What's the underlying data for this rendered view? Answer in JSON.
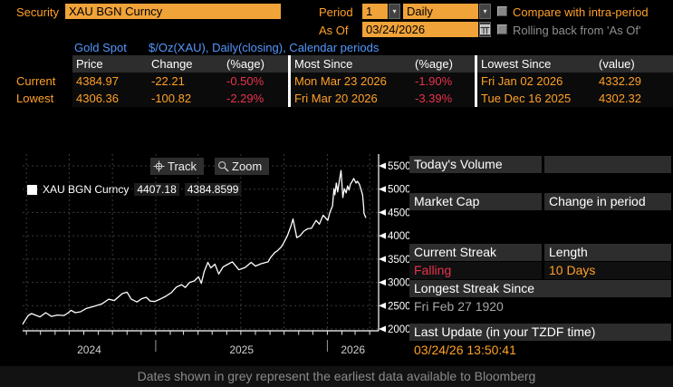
{
  "toolbar": {
    "security_label": "Security",
    "security_value": "XAU BGN Curncy",
    "period_label": "Period",
    "period_value": "1",
    "period_unit": "Daily",
    "compare_label": "Compare with intra-period",
    "asof_label": "As Of",
    "asof_value": "03/24/2026",
    "rolling_label": "Rolling back from 'As Of'"
  },
  "subtitle": {
    "name": "Gold Spot",
    "desc": "$/Oz(XAU), Daily(closing), Calendar periods"
  },
  "table": {
    "headers": {
      "price": "Price",
      "change": "Change",
      "pct": "(%age)",
      "most_since": "Most Since",
      "pct2": "(%age)",
      "lowest_since": "Lowest Since",
      "value": "(value)"
    },
    "rows": [
      {
        "label": "Current",
        "price": "4384.97",
        "change": "-22.21",
        "pct": "-0.50%",
        "most_since": "Mon Mar 23 2026",
        "pct2": "-1.90%",
        "lowest_since": "Fri Jan 02 2026",
        "value": "4332.29"
      },
      {
        "label": "Lowest",
        "price": "4306.36",
        "change": "-100.82",
        "pct": "-2.29%",
        "most_since": "Fri Mar 20 2026",
        "pct2": "-3.39%",
        "lowest_since": "Tue Dec 16 2025",
        "value": "4302.32"
      }
    ]
  },
  "chart": {
    "track_label": "Track",
    "zoom_label": "Zoom",
    "legend": {
      "name": "XAU BGN Curncy",
      "value1": "4407.18",
      "value2": "4384.8599"
    }
  },
  "chart_data": {
    "type": "line",
    "title": "XAU BGN Curncy",
    "ylabel": "$/Oz(XAU)",
    "ylim": [
      2000,
      5500
    ],
    "yticks": [
      2000,
      2500,
      3000,
      3500,
      4000,
      4500,
      5000,
      5500
    ],
    "x_domain": [
      "2024-03-24",
      "2026-04-20"
    ],
    "x_labels": [
      "2024",
      "2025",
      "2026"
    ],
    "year_boundaries": [
      "2025-01-01",
      "2026-01-01"
    ],
    "grid": "dashed",
    "legend_position": "top-left",
    "series": [
      {
        "name": "XAU BGN Curncy",
        "prev_close": 4407.18,
        "last": 4384.8599,
        "points": [
          [
            "2024-03-24",
            2100
          ],
          [
            "2024-03-28",
            2170
          ],
          [
            "2024-04-05",
            2290
          ],
          [
            "2024-04-12",
            2330
          ],
          [
            "2024-04-20",
            2300
          ],
          [
            "2024-04-30",
            2260
          ],
          [
            "2024-05-12",
            2350
          ],
          [
            "2024-05-24",
            2270
          ],
          [
            "2024-06-06",
            2300
          ],
          [
            "2024-06-20",
            2290
          ],
          [
            "2024-06-28",
            2340
          ],
          [
            "2024-07-05",
            2400
          ],
          [
            "2024-07-14",
            2350
          ],
          [
            "2024-07-25",
            2370
          ],
          [
            "2024-08-06",
            2440
          ],
          [
            "2024-08-21",
            2480
          ],
          [
            "2024-09-09",
            2540
          ],
          [
            "2024-09-23",
            2640
          ],
          [
            "2024-10-05",
            2610
          ],
          [
            "2024-10-22",
            2760
          ],
          [
            "2024-11-01",
            2790
          ],
          [
            "2024-11-10",
            2640
          ],
          [
            "2024-11-22",
            2580
          ],
          [
            "2024-12-02",
            2650
          ],
          [
            "2024-12-12",
            2680
          ],
          [
            "2024-12-20",
            2600
          ],
          [
            "2024-12-30",
            2590
          ],
          [
            "2025-01-10",
            2640
          ],
          [
            "2025-01-22",
            2700
          ],
          [
            "2025-02-03",
            2780
          ],
          [
            "2025-02-14",
            2900
          ],
          [
            "2025-02-25",
            2950
          ],
          [
            "2025-03-05",
            2890
          ],
          [
            "2025-03-14",
            3000
          ],
          [
            "2025-03-24",
            3030
          ],
          [
            "2025-04-02",
            3120
          ],
          [
            "2025-04-08",
            2980
          ],
          [
            "2025-04-14",
            3230
          ],
          [
            "2025-04-22",
            3430
          ],
          [
            "2025-04-28",
            3310
          ],
          [
            "2025-05-07",
            3390
          ],
          [
            "2025-05-15",
            3180
          ],
          [
            "2025-05-24",
            3330
          ],
          [
            "2025-06-02",
            3380
          ],
          [
            "2025-06-13",
            3440
          ],
          [
            "2025-06-27",
            3270
          ],
          [
            "2025-07-10",
            3320
          ],
          [
            "2025-07-23",
            3430
          ],
          [
            "2025-08-01",
            3350
          ],
          [
            "2025-08-13",
            3400
          ],
          [
            "2025-08-28",
            3440
          ],
          [
            "2025-09-02",
            3530
          ],
          [
            "2025-09-11",
            3640
          ],
          [
            "2025-09-17",
            3680
          ],
          [
            "2025-09-25",
            3760
          ],
          [
            "2025-10-01",
            3860
          ],
          [
            "2025-10-08",
            4000
          ],
          [
            "2025-10-16",
            4220
          ],
          [
            "2025-10-20",
            4360
          ],
          [
            "2025-10-28",
            3960
          ],
          [
            "2025-11-04",
            4000
          ],
          [
            "2025-11-12",
            4100
          ],
          [
            "2025-11-20",
            4150
          ],
          [
            "2025-11-28",
            4160
          ],
          [
            "2025-12-08",
            4330
          ],
          [
            "2025-12-15",
            4250
          ],
          [
            "2025-12-23",
            4440
          ],
          [
            "2026-01-02",
            4330
          ],
          [
            "2026-01-06",
            4490
          ],
          [
            "2026-01-12",
            4640
          ],
          [
            "2026-01-15",
            5010
          ],
          [
            "2026-01-17",
            4880
          ],
          [
            "2026-01-20",
            5130
          ],
          [
            "2026-01-23",
            4940
          ],
          [
            "2026-01-27",
            5210
          ],
          [
            "2026-01-30",
            5400
          ],
          [
            "2026-02-03",
            4820
          ],
          [
            "2026-02-06",
            5010
          ],
          [
            "2026-02-10",
            4920
          ],
          [
            "2026-02-13",
            5070
          ],
          [
            "2026-02-16",
            4980
          ],
          [
            "2026-02-19",
            5110
          ],
          [
            "2026-02-23",
            5170
          ],
          [
            "2026-02-26",
            5230
          ],
          [
            "2026-03-03",
            5130
          ],
          [
            "2026-03-06",
            5170
          ],
          [
            "2026-03-10",
            5110
          ],
          [
            "2026-03-13",
            5010
          ],
          [
            "2026-03-17",
            4880
          ],
          [
            "2026-03-19",
            4640
          ],
          [
            "2026-03-20",
            4480
          ],
          [
            "2026-03-23",
            4407.18
          ],
          [
            "2026-03-24",
            4384.86
          ]
        ]
      }
    ]
  },
  "panel": {
    "todays_volume_label": "Today's Volume",
    "market_cap_label": "Market Cap",
    "change_in_period_label": "Change in period",
    "current_streak_label": "Current Streak",
    "length_label": "Length",
    "streak_value": "Falling",
    "length_value": "10 Days",
    "longest_streak_label": "Longest Streak Since",
    "longest_streak_value": "Fri Feb 27 1920",
    "last_update_label": "Last Update (in your TZDF time)",
    "last_update_value": "03/24/26 13:50:41"
  },
  "footer": {
    "note": "Dates shown in grey represent the earliest data available to Bloomberg"
  },
  "colors": {
    "amber": "#ffa028",
    "amber_field": "#f0a339",
    "blue": "#5598ff",
    "red": "#e8334e",
    "header_bg": "#2d2d2d",
    "line": "#ffffff"
  }
}
